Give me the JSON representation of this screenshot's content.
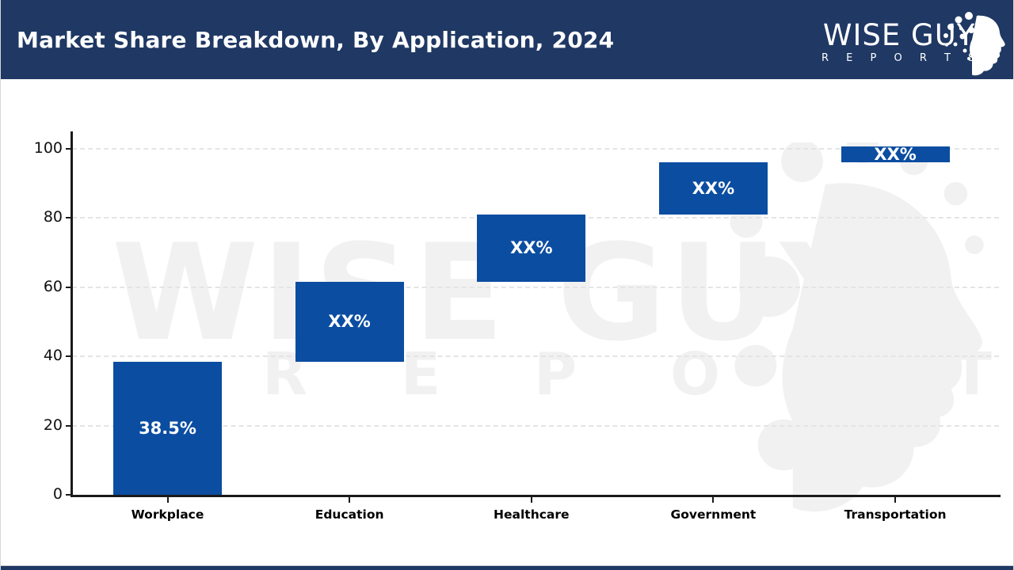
{
  "header": {
    "title": "Market Share Breakdown, By Application, 2024",
    "logo": {
      "wordmark": "WISE GUY",
      "subtext": "R E P O R T S"
    }
  },
  "watermark": {
    "line1": "WISE GUY",
    "line2": "R E P O R T S"
  },
  "colors": {
    "header_bg": "#1f3864",
    "bar_fill": "#0b4da1",
    "bar_label": "#ffffff",
    "axis": "#1a1a1a",
    "gridline": "#e4e4e4",
    "watermark": "#f1f1f1",
    "title_text": "#ffffff"
  },
  "chart_data": {
    "type": "bar",
    "subtype": "waterfall",
    "title": "Market Share Breakdown, By Application, 2024",
    "xlabel": "",
    "ylabel": "",
    "categories": [
      "Workplace",
      "Education",
      "Healthcare",
      "Government",
      "Transportation"
    ],
    "segments": [
      {
        "category": "Workplace",
        "start": 0,
        "end": 38.5,
        "label": "38.5%"
      },
      {
        "category": "Education",
        "start": 38.5,
        "end": 61.5,
        "label": "XX%"
      },
      {
        "category": "Healthcare",
        "start": 61.5,
        "end": 81,
        "label": "XX%"
      },
      {
        "category": "Government",
        "start": 81,
        "end": 96,
        "label": "XX%"
      },
      {
        "category": "Transportation",
        "start": 96,
        "end": 100.5,
        "label": "XX%"
      }
    ],
    "yticks": [
      0,
      20,
      40,
      60,
      80,
      100
    ],
    "ylim": [
      0,
      105
    ],
    "grid": "dashed horizontal",
    "legend": "none",
    "bar_value_labels_masked": "XX% placeholders shown for all bars except Workplace (38.5%)"
  }
}
